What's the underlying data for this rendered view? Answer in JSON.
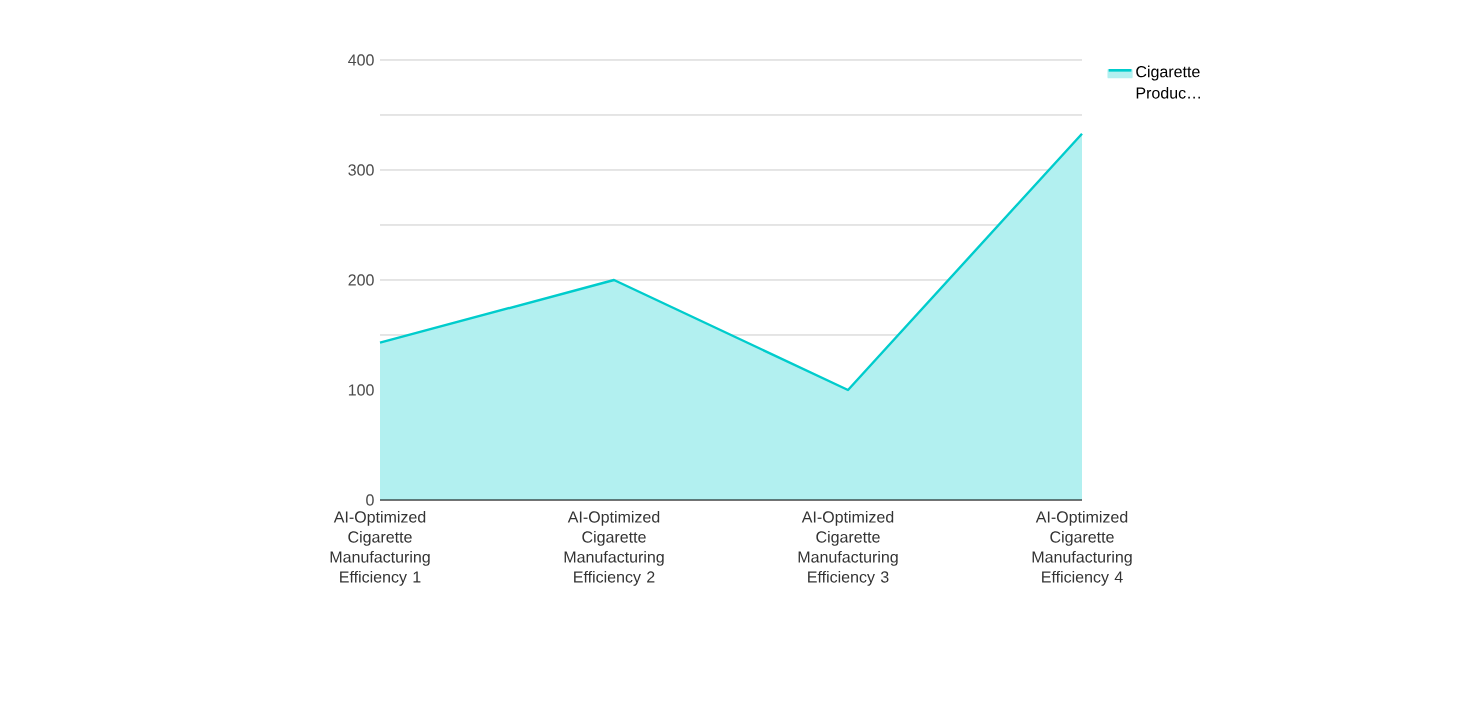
{
  "chart_data": {
    "type": "area",
    "categories": [
      "AI-Optimized Cigarette Manufacturing Efficiency 1",
      "AI-Optimized Cigarette Manufacturing Efficiency 2",
      "AI-Optimized Cigarette Manufacturing Efficiency 3",
      "AI-Optimized Cigarette Manufacturing Efficiency 4"
    ],
    "series": [
      {
        "name": "Cigarette Produc…",
        "color": "#00cccc",
        "values": [
          143,
          200,
          100,
          333
        ]
      }
    ],
    "ylim": [
      0,
      400
    ],
    "yticks": [
      0,
      {
        "value": 50,
        "label": null
      },
      100,
      {
        "value": 150,
        "label": null
      },
      200,
      {
        "value": 250,
        "label": null
      },
      300,
      {
        "value": 350,
        "label": null
      },
      400
    ],
    "grid": "y",
    "legend": "top right",
    "marker": "none",
    "line_style": "solid"
  }
}
